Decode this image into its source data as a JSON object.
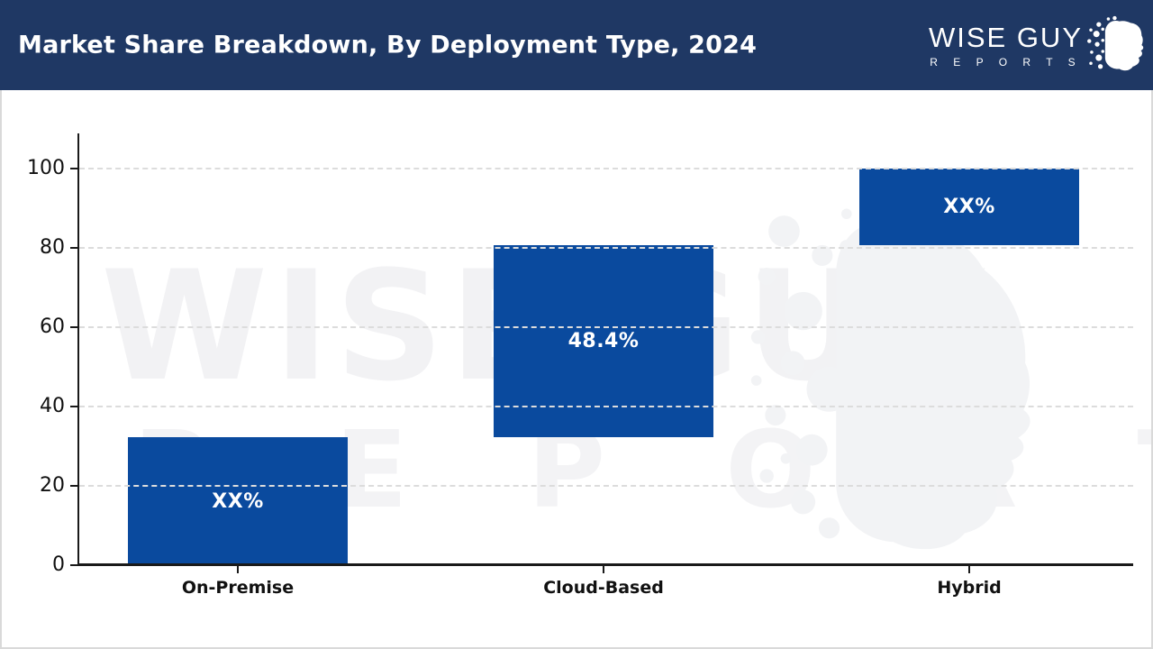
{
  "header": {
    "title": "Market Share Breakdown, By Deployment Type, 2024",
    "bg_color": "#1F3864",
    "logo": {
      "line1": "WISE GUY",
      "line2": "R E P O R T S"
    }
  },
  "watermark": {
    "line1": "WISE GUY",
    "line2": "R E P O R T S"
  },
  "chart_data": {
    "type": "waterfall",
    "title": "Market Share Breakdown, By Deployment Type, 2024",
    "categories": [
      "On-Premise",
      "Cloud-Based",
      "Hybrid"
    ],
    "series": [
      {
        "name": "On-Premise",
        "start": 0,
        "end": 32.2,
        "value": 32.2,
        "value_label": "XX%"
      },
      {
        "name": "Cloud-Based",
        "start": 32.2,
        "end": 80.6,
        "value": 48.4,
        "value_label": "48.4%"
      },
      {
        "name": "Hybrid",
        "start": 80.6,
        "end": 100,
        "value": 19.4,
        "value_label": "XX%"
      }
    ],
    "xlabel": "",
    "ylabel": "",
    "yticks": [
      0,
      20,
      40,
      60,
      80,
      100
    ],
    "ylim": [
      0,
      105
    ],
    "grid": "horizontal-dashed",
    "legend": "none",
    "bar_color": "#0A4A9E",
    "value_label_color": "#FFFFFF",
    "axis_color": "#1A1A1A",
    "gridline_color": "#DCDCDC"
  }
}
